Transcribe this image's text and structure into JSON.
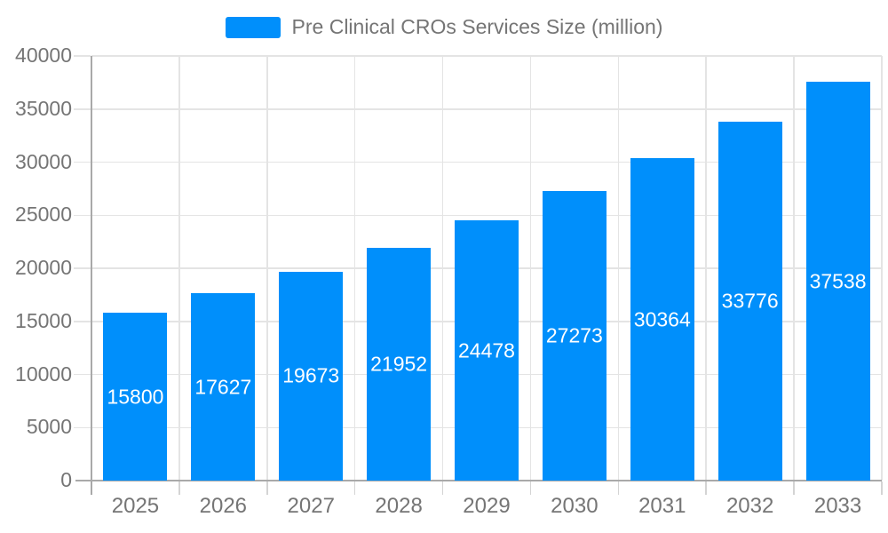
{
  "legend": {
    "label": "Pre Clinical CROs Services Size (million)"
  },
  "colors": {
    "bar": "#008FFB",
    "grid": "#e4e4e4",
    "axis": "#a9a9a9",
    "tick": "#d4d4d4",
    "text": "#757575",
    "bar_label": "#ffffff",
    "bg": "#ffffff"
  },
  "chart_data": {
    "type": "bar",
    "title": "Pre Clinical CROs Services Size (million)",
    "series_name": "Pre Clinical CROs Services Size (million)",
    "categories": [
      "2025",
      "2026",
      "2027",
      "2028",
      "2029",
      "2030",
      "2031",
      "2032",
      "2033"
    ],
    "values": [
      15800,
      17627,
      19673,
      21952,
      24478,
      27273,
      30364,
      33776,
      37538
    ],
    "xlabel": "",
    "ylabel": "",
    "ylim": [
      0,
      40000
    ],
    "ytick_step": 5000,
    "yticks": [
      0,
      5000,
      10000,
      15000,
      20000,
      25000,
      30000,
      35000,
      40000
    ],
    "grid": true,
    "legend_position": "top",
    "bar_labels_visible": true,
    "bar_label_placement": "center-of-bar"
  }
}
